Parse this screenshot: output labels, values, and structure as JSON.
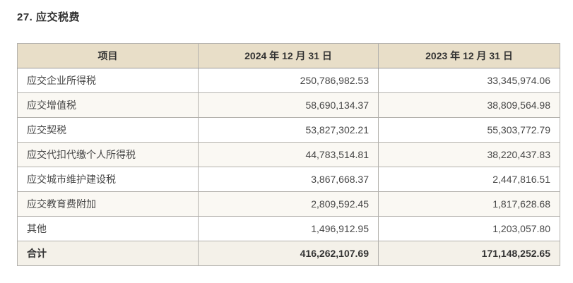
{
  "page": {
    "title": "27. 应交税费"
  },
  "table": {
    "columns": [
      "项目",
      "2024 年 12 月 31 日",
      "2023 年 12 月 31 日"
    ],
    "rows": [
      {
        "item": "应交企业所得税",
        "v2024": "250,786,982.53",
        "v2023": "33,345,974.06"
      },
      {
        "item": "应交增值税",
        "v2024": "58,690,134.37",
        "v2023": "38,809,564.98"
      },
      {
        "item": "应交契税",
        "v2024": "53,827,302.21",
        "v2023": "55,303,772.79"
      },
      {
        "item": "应交代扣代缴个人所得税",
        "v2024": "44,783,514.81",
        "v2023": "38,220,437.83"
      },
      {
        "item": "应交城市维护建设税",
        "v2024": "3,867,668.37",
        "v2023": "2,447,816.51"
      },
      {
        "item": "应交教育费附加",
        "v2024": "2,809,592.45",
        "v2023": "1,817,628.68"
      },
      {
        "item": "其他",
        "v2024": "1,496,912.95",
        "v2023": "1,203,057.80"
      }
    ],
    "total": {
      "item": "合计",
      "v2024": "416,262,107.69",
      "v2023": "171,148,252.65"
    }
  },
  "colors": {
    "header_bg": "#e8dec8",
    "alt_row_bg": "#faf8f3",
    "total_row_bg": "#f4f1e9",
    "border": "#b3b1ad"
  }
}
